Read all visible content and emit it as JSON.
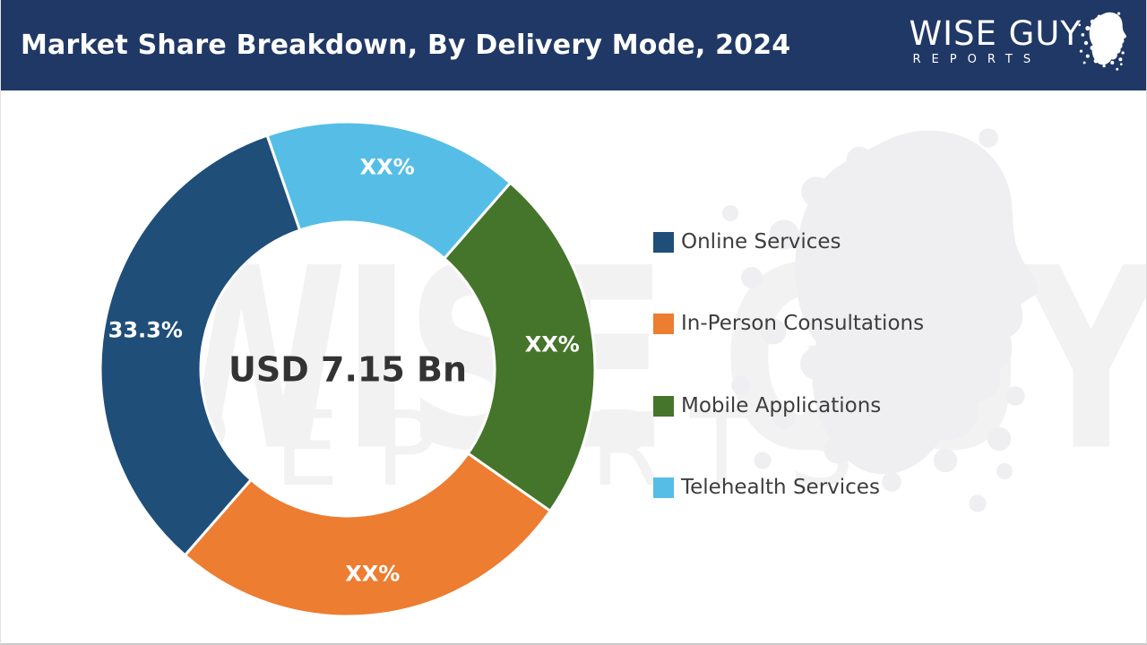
{
  "header": {
    "title": "Market Share Breakdown, By Delivery Mode, 2024",
    "bg_color": "#203865",
    "logo": {
      "name": "WISE GUY",
      "tagline": "REPORTS",
      "icon": "dotted-face-profile"
    }
  },
  "watermark": {
    "line1": "WISE GUY",
    "line2": "REPORTS",
    "icon": "dotted-face-profile"
  },
  "chart_data": {
    "type": "pie",
    "subtype": "donut",
    "title": "Market Share Breakdown, By Delivery Mode, 2024",
    "center_label": "USD 7.15 Bn",
    "categories": [
      "Online Services",
      "In-Person Consultations",
      "Mobile Applications",
      "Telehealth Services"
    ],
    "values": [
      33.3,
      26.7,
      23.3,
      16.7
    ],
    "value_labels": [
      "33.3%",
      "XX%",
      "XX%",
      "XX%"
    ],
    "colors": [
      "#1F4E79",
      "#ED7D31",
      "#45752B",
      "#56BEE6"
    ],
    "segment_label_color": "#ffffff",
    "start_angle": 109,
    "counterclockwise": true,
    "legend_position": "right",
    "separator_color": "#ffffff"
  }
}
